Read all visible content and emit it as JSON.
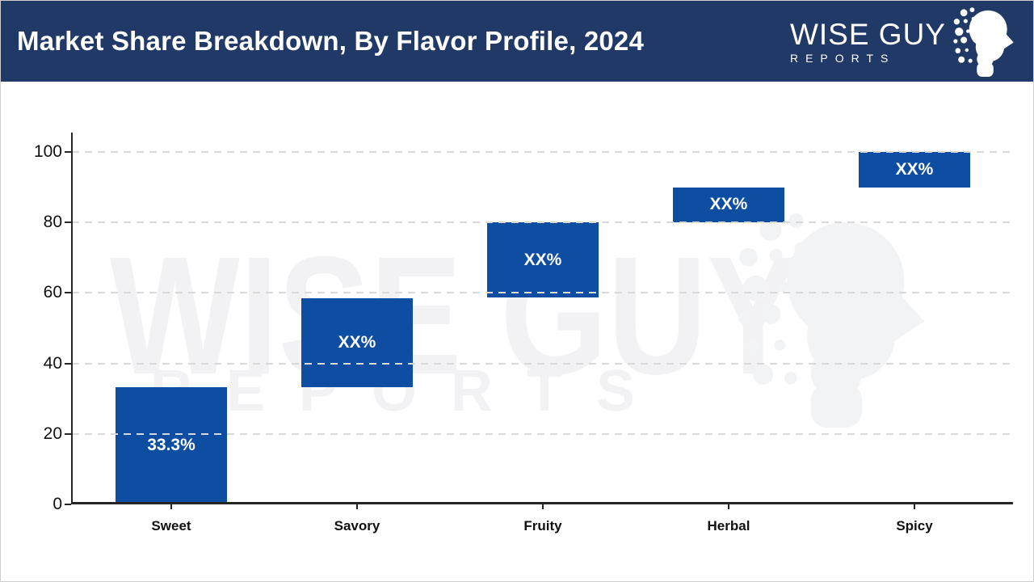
{
  "header": {
    "title": "Market Share Breakdown, By Flavor Profile, 2024",
    "logo": {
      "wordmark": "WISE GUY",
      "wordmark2": "REPORTS"
    }
  },
  "watermark": {
    "line1": "WISE GUY",
    "line2": "REPORTS"
  },
  "chart_data": {
    "type": "bar",
    "subtype": "waterfall",
    "title": "Market Share Breakdown, By Flavor Profile, 2024",
    "categories": [
      "Sweet",
      "Savory",
      "Fruity",
      "Herbal",
      "Spicy"
    ],
    "bars": [
      {
        "category": "Sweet",
        "start": 0,
        "end": 33.3,
        "value": 33.3,
        "label": "33.3%"
      },
      {
        "category": "Savory",
        "start": 33.3,
        "end": 58.6,
        "value": 25.3,
        "label": "XX%"
      },
      {
        "category": "Fruity",
        "start": 58.6,
        "end": 80.0,
        "value": 21.4,
        "label": "XX%"
      },
      {
        "category": "Herbal",
        "start": 80.0,
        "end": 90.0,
        "value": 10.0,
        "label": "XX%"
      },
      {
        "category": "Spicy",
        "start": 90.0,
        "end": 100.0,
        "value": 10.0,
        "label": "XX%"
      }
    ],
    "xlabel": "",
    "ylabel": "",
    "ylim": [
      0,
      100
    ],
    "yticks": [
      0,
      20,
      40,
      60,
      80,
      100
    ],
    "grid": "dashed-horizontal",
    "legend": "none",
    "bar_color": "#0D4DA2",
    "bar_label_color": "#FFFFFF"
  },
  "colors": {
    "header_bg": "#213966",
    "bar_blue": "#0D4DA2",
    "gridline": "#D9D9D9",
    "axis": "#262626",
    "tick_text": "#111111",
    "watermark": "#F2F2F4",
    "title_text": "#FFFFFF"
  }
}
